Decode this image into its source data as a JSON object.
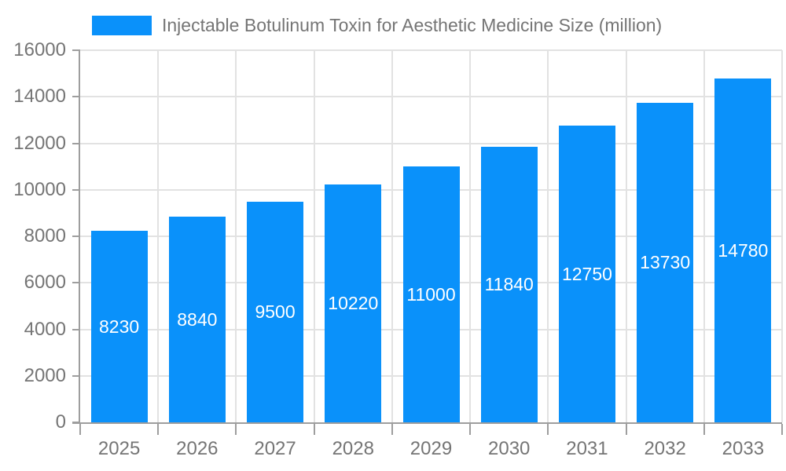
{
  "legend": {
    "label": "Injectable Botulinum Toxin for Aesthetic Medicine Size (million)"
  },
  "chart_data": {
    "type": "bar",
    "title": "Injectable Botulinum Toxin for Aesthetic Medicine Size (million)",
    "categories": [
      "2025",
      "2026",
      "2027",
      "2028",
      "2029",
      "2030",
      "2031",
      "2032",
      "2033"
    ],
    "values": [
      8230,
      8840,
      9500,
      10220,
      11000,
      11840,
      12750,
      13730,
      14780
    ],
    "bar_value_labels": [
      "8230",
      "8840",
      "9500",
      "10220",
      "11000",
      "11840",
      "12750",
      "13730",
      "14780"
    ],
    "xlabel": "",
    "ylabel": "",
    "ylim": [
      0,
      16000
    ],
    "yticks": [
      0,
      2000,
      4000,
      6000,
      8000,
      10000,
      12000,
      14000,
      16000
    ],
    "grid": true,
    "legend_position": "top"
  },
  "colors": {
    "bar": "#0a91fa",
    "bar_label": "#ffffff",
    "axis_text": "#757575",
    "axis_line": "#9e9e9e",
    "gridline": "#e2e2e2",
    "background": "#ffffff"
  }
}
